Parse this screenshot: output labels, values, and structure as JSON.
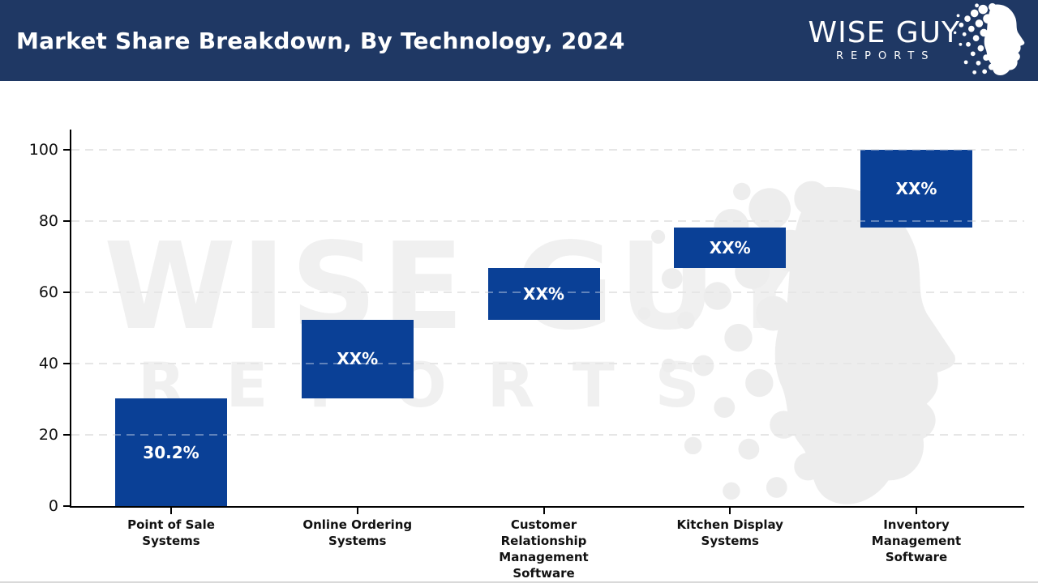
{
  "header": {
    "title": "Market Share Breakdown, By Technology, 2024",
    "logo": {
      "name": "WISE GUY",
      "subtitle": "REPORTS"
    }
  },
  "watermark": {
    "line1": "WISE GUY",
    "line2": "REPORTS"
  },
  "colors": {
    "header_bg": "#1f3864",
    "bar": "#0a4096",
    "bar_label": "#ffffff",
    "grid": "#d8d8d8",
    "axis": "#000000",
    "watermark": "#f0f0f0"
  },
  "chart_data": {
    "type": "bar",
    "subtype": "waterfall",
    "title": "Market Share Breakdown, By Technology, 2024",
    "categories": [
      "Point of Sale Systems",
      "Online Ordering Systems",
      "Customer Relationship Management Software",
      "Kitchen Display Systems",
      "Inventory Management Software"
    ],
    "segments": [
      {
        "category": "Point of Sale Systems",
        "start": 0,
        "end": 30.2,
        "label": "30.2%"
      },
      {
        "category": "Online Ordering Systems",
        "start": 30.2,
        "end": 52.3,
        "label": "XX%"
      },
      {
        "category": "Customer Relationship Management Software",
        "start": 52.3,
        "end": 66.8,
        "label": "XX%"
      },
      {
        "category": "Kitchen Display Systems",
        "start": 66.8,
        "end": 78.2,
        "label": "XX%"
      },
      {
        "category": "Inventory Management Software",
        "start": 78.2,
        "end": 100,
        "label": "XX%"
      }
    ],
    "xlabel": "",
    "ylabel": "",
    "ylim": [
      0,
      100
    ],
    "yticks": [
      0,
      20,
      40,
      60,
      80,
      100
    ],
    "grid": true,
    "legend": false
  }
}
